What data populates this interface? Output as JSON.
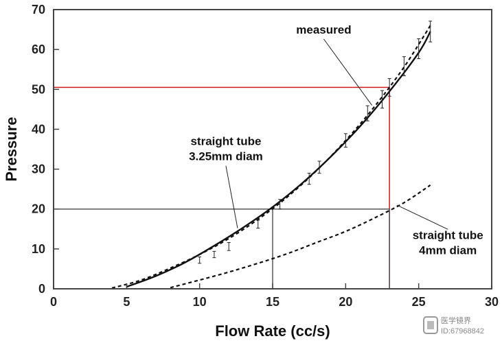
{
  "chart_data": {
    "type": "line",
    "xlabel": "Flow Rate (cc/s)",
    "ylabel": "Pressure",
    "xlim": [
      0,
      30
    ],
    "ylim": [
      0,
      70
    ],
    "xticks": [
      0,
      5,
      10,
      15,
      20,
      25,
      30
    ],
    "yticks": [
      0,
      10,
      20,
      30,
      40,
      50,
      60,
      70
    ],
    "grid": false,
    "series": [
      {
        "name": "measured",
        "style": "solid",
        "color": "#111111",
        "x": [
          5,
          7,
          9,
          11,
          13,
          15,
          17,
          19,
          21,
          23,
          25,
          25.8
        ],
        "y": [
          0.5,
          3.2,
          6.6,
          10.8,
          15.4,
          20.5,
          26.4,
          33.2,
          40.8,
          49.5,
          59.2,
          64.5
        ]
      },
      {
        "name": "straight tube 3.25mm diam",
        "style": "dashed",
        "color": "#111111",
        "x": [
          4,
          6,
          8,
          10,
          12,
          14,
          16,
          18,
          20,
          22,
          24,
          25.8
        ],
        "y": [
          0.2,
          2.2,
          5.2,
          8.6,
          12.6,
          17.4,
          23,
          29.6,
          37.2,
          45.8,
          55.6,
          66
        ]
      },
      {
        "name": "straight tube 4mm diam",
        "style": "dashed",
        "color": "#111111",
        "x": [
          8,
          10,
          12,
          14,
          16,
          18,
          20,
          22,
          24,
          25.8
        ],
        "y": [
          0.3,
          2.2,
          4.2,
          6.4,
          8.8,
          11.6,
          14.4,
          17.8,
          21.6,
          26
        ]
      }
    ],
    "error_bars": {
      "x": [
        10,
        11,
        12,
        14,
        15.5,
        17.5,
        18.2,
        20,
        21.5,
        22.5,
        23,
        24,
        25,
        25.8
      ],
      "y": [
        7.2,
        8.6,
        10.6,
        16.2,
        21.2,
        27.6,
        30.5,
        37.2,
        44,
        47.5,
        50.5,
        55.8,
        60.2,
        64.5
      ],
      "err": [
        0.8,
        0.8,
        1,
        1,
        1.2,
        1.4,
        1.5,
        1.7,
        1.9,
        2.2,
        2.2,
        2.4,
        2.5,
        2.6
      ]
    },
    "reference_lines": [
      {
        "color": "#d11a1a",
        "x": 23,
        "y": 50.5
      },
      {
        "color": "#555555",
        "x": 15,
        "y": 20
      },
      {
        "color": "#555555",
        "x": 23,
        "y": 20
      }
    ],
    "annotations": [
      {
        "lines": [
          "measured"
        ],
        "x": 18.5,
        "y": 64,
        "target_x": 21.8,
        "target_y": 46
      },
      {
        "lines": [
          "straight tube",
          "3.25mm diam"
        ],
        "x": 11.8,
        "y": 36,
        "target_x": 12.6,
        "target_y": 15.2
      },
      {
        "lines": [
          "straight tube",
          "4mm diam"
        ],
        "x": 27,
        "y": 12.5,
        "target_x": 23.5,
        "target_y": 21
      }
    ]
  },
  "watermark": {
    "text": "医学镜界",
    "subtext": "ID:67968842"
  }
}
